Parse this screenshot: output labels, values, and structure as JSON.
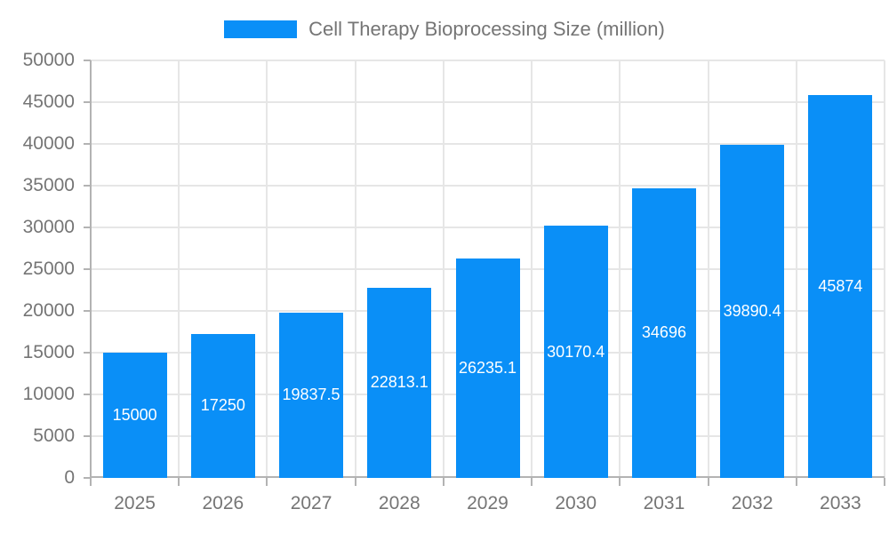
{
  "legend": {
    "label": "Cell Therapy Bioprocessing Size (million)"
  },
  "chart_data": {
    "type": "bar",
    "title": "Cell Therapy Bioprocessing Size (million)",
    "categories": [
      "2025",
      "2026",
      "2027",
      "2028",
      "2029",
      "2030",
      "2031",
      "2032",
      "2033"
    ],
    "values": [
      15000,
      17250,
      19837.5,
      22813.1,
      26235.1,
      30170.4,
      34696,
      39890.4,
      45874
    ],
    "bar_labels": [
      "15000",
      "17250",
      "19837.5",
      "22813.1",
      "26235.1",
      "30170.4",
      "34696",
      "39890.4",
      "45874"
    ],
    "xlabel": "",
    "ylabel": "",
    "ylim": [
      0,
      50000
    ],
    "ytick_step": 5000,
    "yticks": [
      0,
      5000,
      10000,
      15000,
      20000,
      25000,
      30000,
      35000,
      40000,
      45000,
      50000
    ],
    "grid": true,
    "legend_position": "top",
    "value_labels_position": "center-inside-clipped",
    "colors": {
      "bar": "#0a8ff7",
      "axis_line": "#b3b3b3",
      "grid_line": "#e6e6e6",
      "tick_text": "#757575",
      "legend_text": "#757575",
      "bar_label_text": "#ffffff",
      "background": "#ffffff"
    }
  }
}
